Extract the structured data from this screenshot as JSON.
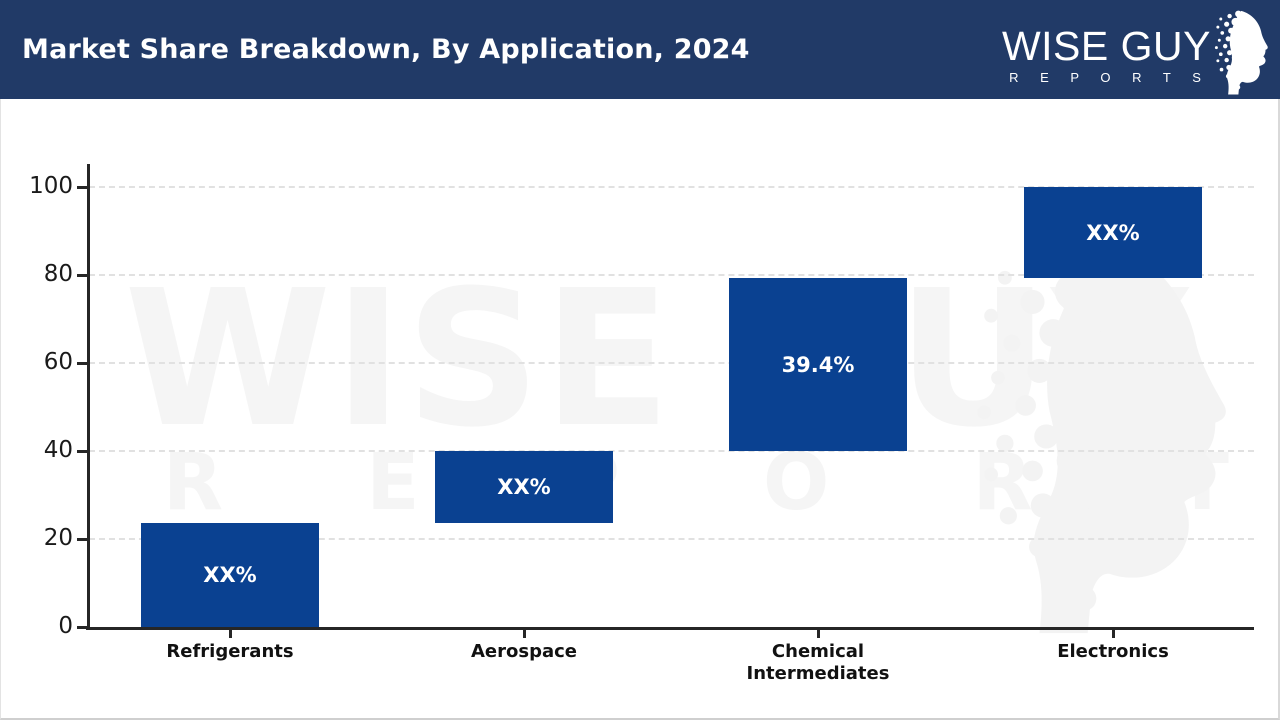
{
  "header": {
    "title": "Market Share Breakdown, By Application, 2024",
    "bg_color": "#213a67",
    "logo": {
      "name": "WISE GUY",
      "sub": "R E P O R T S"
    }
  },
  "watermark": {
    "text": "WISE GUY",
    "sub": "R E P O R T S"
  },
  "chart_data": {
    "type": "bar",
    "subtype": "waterfall",
    "title": "Market Share Breakdown, By Application, 2024",
    "categories": [
      "Refrigerants",
      "Aerospace",
      "Chemical Intermediates",
      "Electronics"
    ],
    "segments": [
      {
        "category": "Refrigerants",
        "start": 0,
        "end": 23.6,
        "label": "XX%"
      },
      {
        "category": "Aerospace",
        "start": 23.6,
        "end": 39.9,
        "label": "XX%"
      },
      {
        "category": "Chemical Intermediates",
        "start": 39.9,
        "end": 79.3,
        "label": "39.4%"
      },
      {
        "category": "Electronics",
        "start": 79.3,
        "end": 100,
        "label": "XX%"
      }
    ],
    "xlabel": "",
    "ylabel": "",
    "ylim": [
      0,
      100
    ],
    "yticks": [
      0,
      20,
      40,
      60,
      80,
      100
    ],
    "grid": {
      "axis": "y",
      "style": "dashed",
      "color": "#e1e1e1"
    },
    "legend": "none",
    "bar_color": "#0a4191",
    "bar_label_color": "#ffffff",
    "axis_color": "#262626"
  }
}
